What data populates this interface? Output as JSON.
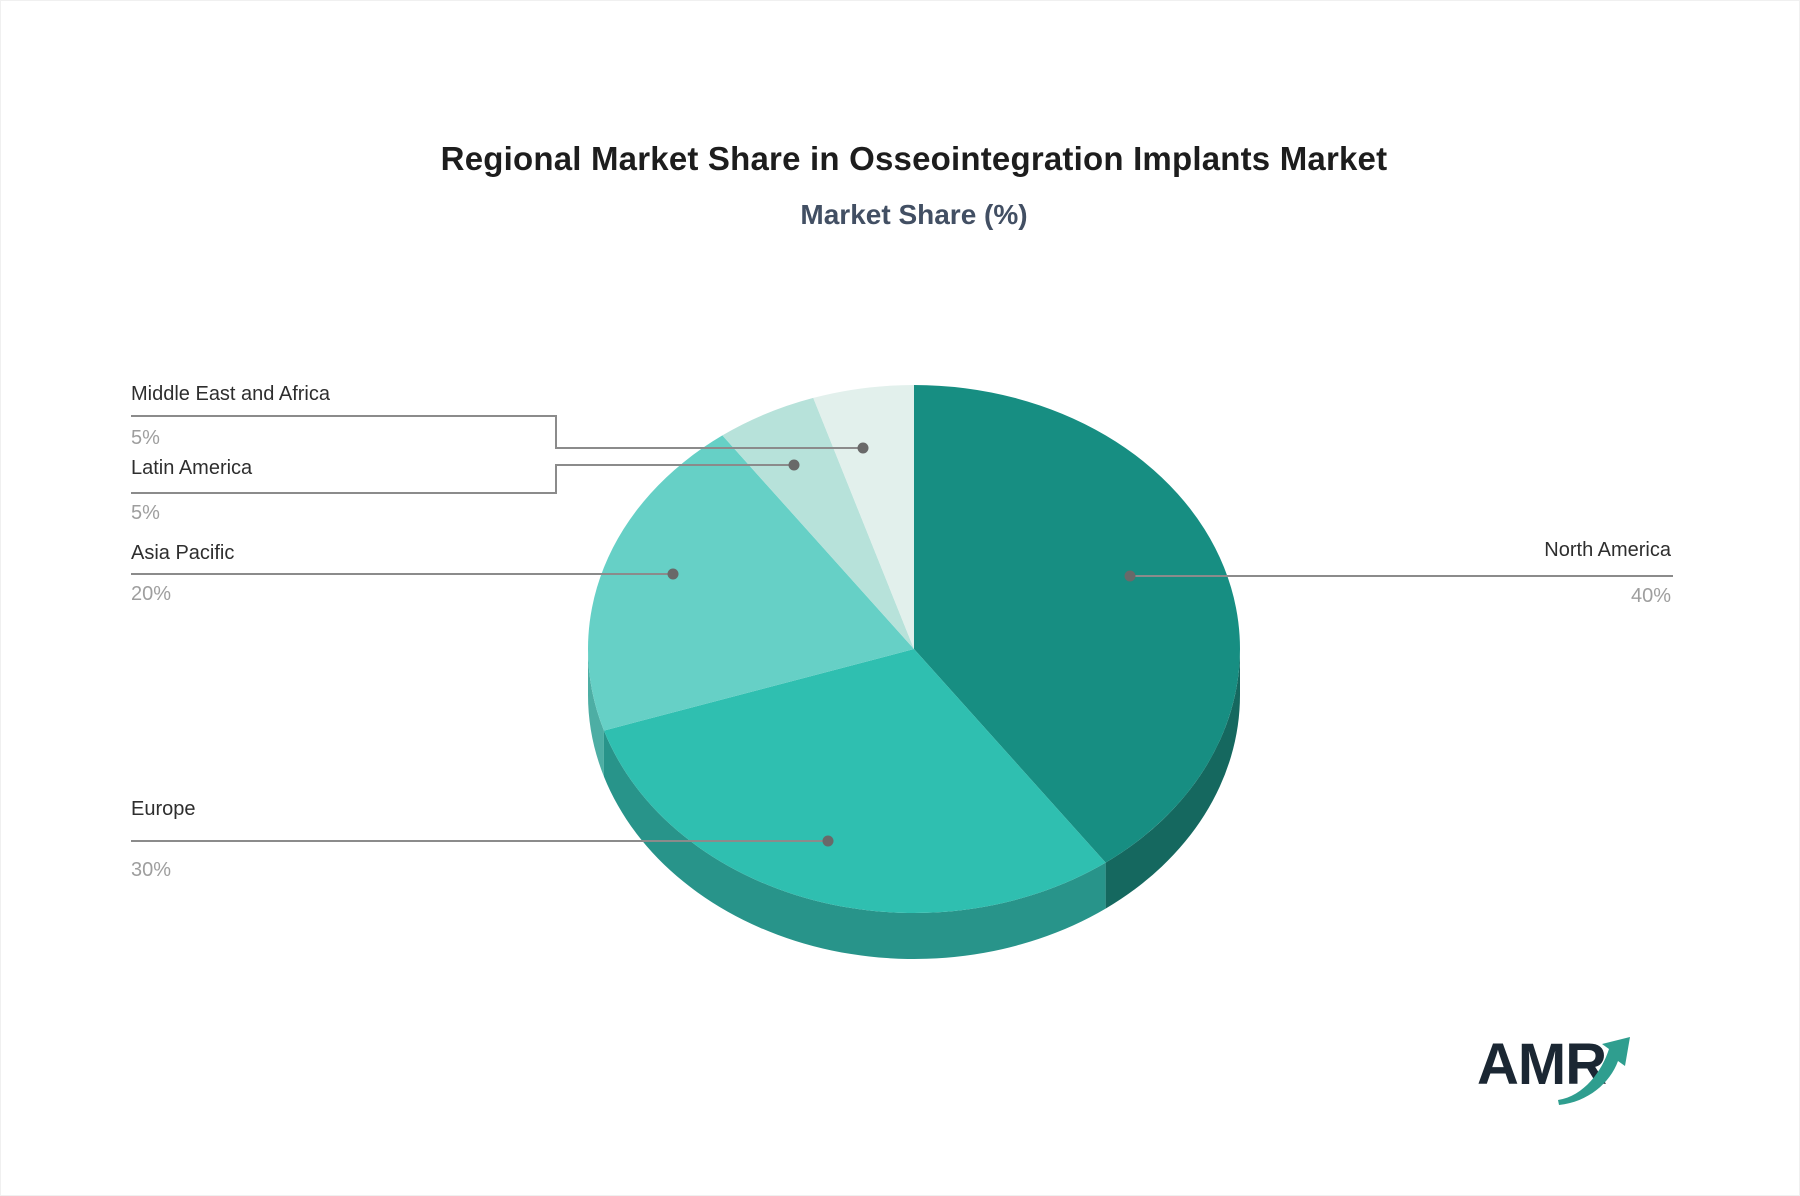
{
  "header": {
    "title": "Regional Market Share in Osseointegration Implants Market",
    "subtitle": "Market Share (%)"
  },
  "chart_data": {
    "type": "pie",
    "title": "Regional Market Share in Osseointegration Implants Market",
    "subtitle": "Market Share (%)",
    "unit": "%",
    "effect": "3d",
    "start_angle_deg": 0,
    "direction": "clockwise",
    "legend_position": "callout-labels",
    "slices": [
      {
        "name": "North America",
        "value": 40,
        "pct_label": "40%",
        "color": "#178e82",
        "side_color": "#15685f",
        "label_side": "right"
      },
      {
        "name": "Europe",
        "value": 30,
        "pct_label": "30%",
        "color": "#2fbfb0",
        "side_color": "#28948a",
        "label_side": "left"
      },
      {
        "name": "Asia Pacific",
        "value": 20,
        "pct_label": "20%",
        "color": "#66d0c6",
        "side_color": "#4daea4",
        "label_side": "left"
      },
      {
        "name": "Latin America",
        "value": 5,
        "pct_label": "5%",
        "color": "#b7e2da",
        "side_color": "#93c9c0",
        "label_side": "left"
      },
      {
        "name": "Middle East and Africa",
        "value": 5,
        "pct_label": "5%",
        "color": "#e2f0ec",
        "side_color": "#c2d9d4",
        "label_side": "left"
      }
    ],
    "connector_color": "#8b8b8b",
    "connector_dot_color": "#696969"
  },
  "logo": {
    "text": "AMR",
    "text_color": "#1b2733",
    "arrow_icon_color": "#2f9e8f"
  }
}
